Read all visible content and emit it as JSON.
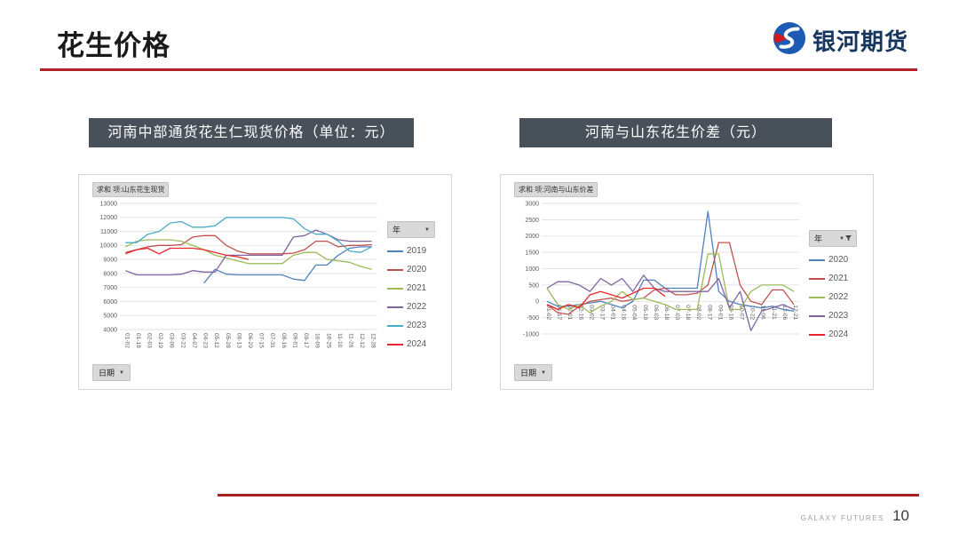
{
  "slide": {
    "title": "花生价格",
    "page_number": "10",
    "footer_brand": "GALAXY FUTURES"
  },
  "logo": {
    "company": "银河期货"
  },
  "colors": {
    "accent_red": "#b32025",
    "panel_header_bg": "#48515a"
  },
  "chart_data": [
    {
      "type": "line",
      "title": "河南中部通货花生仁现货价格（单位：元）",
      "pivot_value_button": "求和 项:山东花生现货",
      "axis_button": "日期",
      "legend_button": "年",
      "legend_filtered": false,
      "legend_position": "right",
      "grid": true,
      "ylim": [
        4000,
        13000
      ],
      "ystep": 1000,
      "xaxis_label_at": 4000,
      "categories": [
        "01-02",
        "01-18",
        "02-03",
        "02-19",
        "03-06",
        "03-22",
        "04-07",
        "04-23",
        "05-12",
        "05-28",
        "06-13",
        "06-29",
        "07-15",
        "07-31",
        "08-16",
        "09-01",
        "09-17",
        "10-09",
        "10-25",
        "11-10",
        "11-26",
        "12-12",
        "12-28"
      ],
      "series": [
        {
          "name": "2019",
          "color": "#4F81BD",
          "values": [
            null,
            null,
            null,
            null,
            null,
            null,
            null,
            7300,
            8300,
            7950,
            7900,
            7900,
            7900,
            7900,
            7900,
            7600,
            7500,
            8600,
            8600,
            9300,
            9800,
            9900,
            9900
          ]
        },
        {
          "name": "2020",
          "color": "#C0504D",
          "values": [
            9500,
            9700,
            9900,
            10000,
            10000,
            10050,
            10600,
            10700,
            10700,
            10000,
            9600,
            9400,
            9400,
            9400,
            9400,
            9450,
            9700,
            10300,
            10300,
            9900,
            10000,
            10000,
            10050
          ]
        },
        {
          "name": "2021",
          "color": "#9BBB59",
          "values": [
            9900,
            10300,
            10400,
            10400,
            10400,
            10300,
            10000,
            9700,
            9300,
            9100,
            8900,
            8700,
            8700,
            8700,
            8700,
            9300,
            9500,
            9500,
            9000,
            8900,
            8800,
            8500,
            8300
          ]
        },
        {
          "name": "2022",
          "color": "#8064A2",
          "values": [
            8200,
            7900,
            7900,
            7900,
            7900,
            7950,
            8200,
            8100,
            8100,
            9300,
            9300,
            9300,
            9300,
            9300,
            9300,
            10600,
            10700,
            11100,
            10800,
            10400,
            10300,
            10300,
            10300
          ]
        },
        {
          "name": "2023",
          "color": "#4BACC6",
          "values": [
            10200,
            10200,
            10800,
            11000,
            11600,
            11700,
            11300,
            11300,
            11400,
            12000,
            12000,
            12000,
            12000,
            12000,
            12000,
            11900,
            11200,
            10800,
            10800,
            10300,
            9600,
            9500,
            9900
          ]
        },
        {
          "name": "2024",
          "color": "#E8262B",
          "values": [
            9400,
            9700,
            9800,
            9400,
            9800,
            9800,
            9800,
            9700,
            9500,
            9300,
            9200,
            9000,
            null,
            null,
            null,
            null,
            null,
            null,
            null,
            null,
            null,
            null,
            null
          ]
        }
      ]
    },
    {
      "type": "line",
      "title": "河南与山东花生价差（元）",
      "pivot_value_button": "求和 项:河南与山东价差",
      "axis_button": "日期",
      "legend_button": "年",
      "legend_filtered": true,
      "legend_position": "right",
      "grid": true,
      "ylim": [
        -1000,
        3000
      ],
      "ystep": 500,
      "xaxis_label_at": 0,
      "categories": [
        "01-02",
        "01-17",
        "02-01",
        "02-16",
        "03-02",
        "03-17",
        "04-01",
        "04-16",
        "05-04",
        "05-19",
        "06-03",
        "06-18",
        "07-03",
        "07-18",
        "08-02",
        "08-17",
        "09-01",
        "09-16",
        "10-07",
        "10-22",
        "11-06",
        "11-21",
        "12-06",
        "12-21"
      ],
      "series": [
        {
          "name": "2020",
          "color": "#4F81BD",
          "values": [
            0,
            -150,
            -150,
            -100,
            -50,
            0,
            -100,
            -200,
            0,
            650,
            650,
            400,
            400,
            400,
            400,
            2750,
            300,
            0,
            -100,
            -150,
            -200,
            -150,
            -250,
            -300
          ]
        },
        {
          "name": "2021",
          "color": "#C0504D",
          "values": [
            -100,
            -350,
            -400,
            -150,
            0,
            50,
            100,
            0,
            50,
            100,
            350,
            400,
            200,
            200,
            250,
            500,
            1800,
            1800,
            500,
            0,
            -100,
            350,
            350,
            -100
          ]
        },
        {
          "name": "2022",
          "color": "#9BBB59",
          "values": [
            400,
            -100,
            -250,
            -100,
            -350,
            -150,
            0,
            300,
            50,
            100,
            0,
            -100,
            -250,
            -250,
            -250,
            1450,
            1450,
            -250,
            -250,
            300,
            500,
            500,
            500,
            300
          ]
        },
        {
          "name": "2023",
          "color": "#8064A2",
          "values": [
            400,
            600,
            600,
            500,
            300,
            700,
            500,
            700,
            300,
            800,
            400,
            300,
            300,
            300,
            300,
            300,
            700,
            -200,
            300,
            -900,
            -300,
            -200,
            -100,
            -250
          ]
        },
        {
          "name": "2024",
          "color": "#E8262B",
          "values": [
            -100,
            -250,
            -100,
            -200,
            200,
            300,
            200,
            100,
            250,
            400,
            400,
            150,
            null,
            null,
            null,
            null,
            null,
            null,
            null,
            null,
            null,
            null,
            null,
            null
          ]
        }
      ]
    }
  ]
}
